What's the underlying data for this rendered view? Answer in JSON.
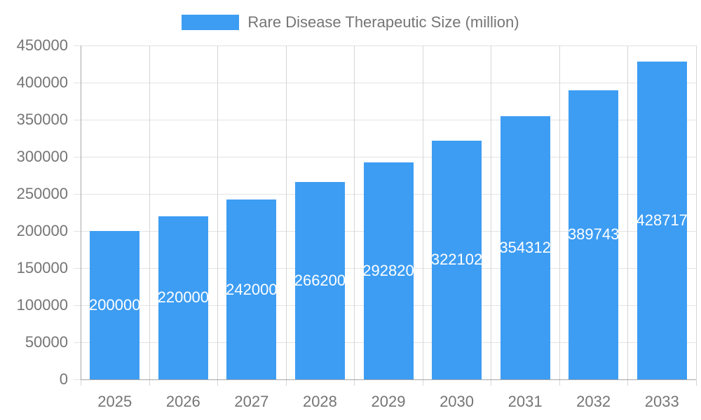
{
  "chart_data": {
    "type": "bar",
    "title": "Rare Disease Therapeutic Size (million)",
    "legend": {
      "position": "top-center",
      "label": "Rare Disease Therapeutic Size (million)"
    },
    "categories": [
      "2025",
      "2026",
      "2027",
      "2028",
      "2029",
      "2030",
      "2031",
      "2032",
      "2033"
    ],
    "values": [
      200000,
      220000,
      242000,
      266200,
      292820,
      322102,
      354312,
      389743,
      428717
    ],
    "xlabel": "",
    "ylabel": "",
    "ylim": [
      0,
      450000
    ],
    "ytick_step": 50000,
    "ytick_labels": [
      "0",
      "50000",
      "100000",
      "150000",
      "200000",
      "250000",
      "300000",
      "350000",
      "400000",
      "450000"
    ],
    "grid": true,
    "value_labels_position": "inside-center",
    "colors": {
      "bar": "#3D9DF3",
      "value_label": "#FFFFFF",
      "axis_text": "#757575",
      "axis_line": "#A6A6A6",
      "grid_horizontal": "#E3E3E3",
      "grid_vertical": "#D6D6D6",
      "background": "#FFFFFF"
    }
  }
}
